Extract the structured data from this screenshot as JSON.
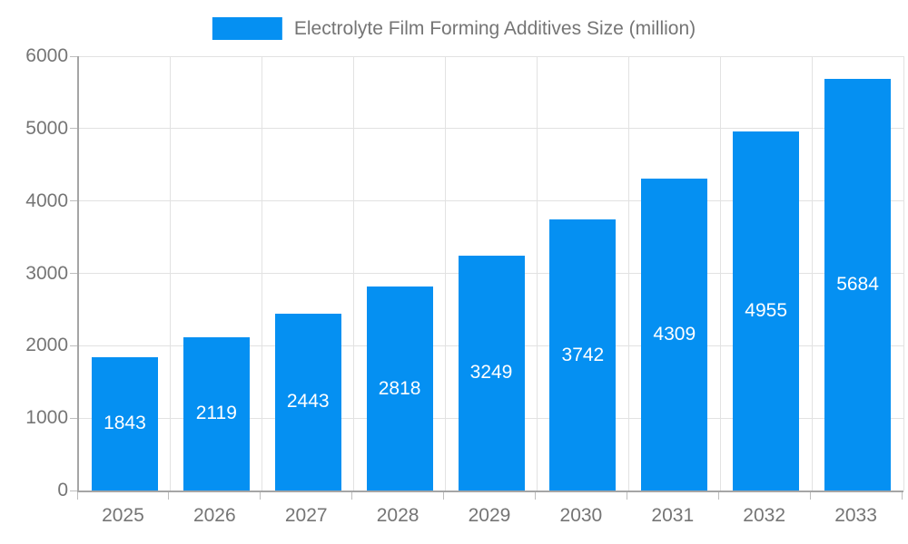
{
  "legend": {
    "label": "Electrolyte Film Forming Additives Size (million)"
  },
  "chart_data": {
    "type": "bar",
    "title": "Electrolyte Film Forming Additives Size (million)",
    "categories": [
      "2025",
      "2026",
      "2027",
      "2028",
      "2029",
      "2030",
      "2031",
      "2032",
      "2033"
    ],
    "values": [
      1843,
      2119,
      2443,
      2818,
      3249,
      3742,
      4309,
      4955,
      5684
    ],
    "series_name": "Electrolyte Film Forming Additives Size (million)",
    "xlabel": "",
    "ylabel": "",
    "ylim": [
      0,
      6000
    ],
    "yticks": [
      0,
      1000,
      2000,
      3000,
      4000,
      5000,
      6000
    ],
    "grid": true,
    "legend_position": "top-center",
    "value_labels": "inside-center-white"
  },
  "colors": {
    "bar": "#0590f2",
    "grid": "#e2e2e2",
    "axis": "#a5a5a5",
    "tick": "#bdbdbd",
    "text": "#757575",
    "value_text": "#ffffff",
    "background": "#ffffff"
  }
}
